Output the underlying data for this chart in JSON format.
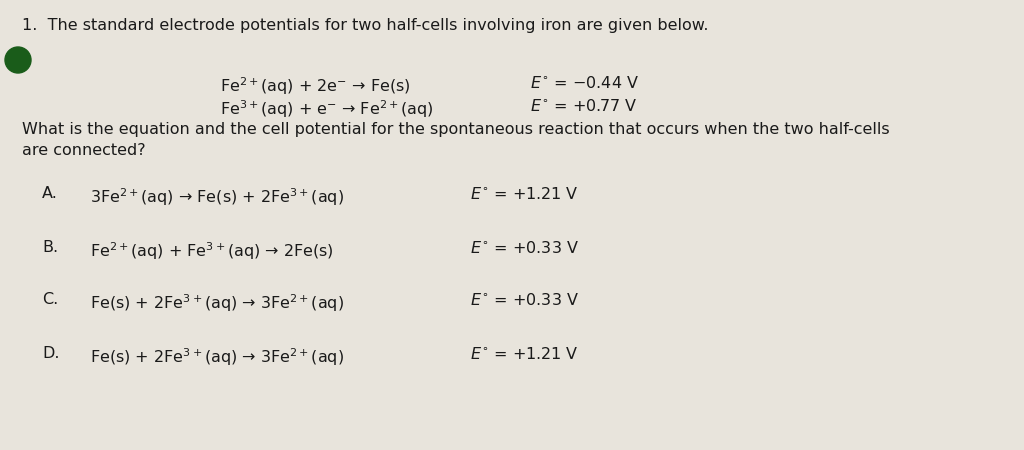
{
  "background_color": "#e8e4dc",
  "title_line": "1.  The standard electrode potentials for two half-cells involving iron are given below.",
  "half_cell_1_eq": "Fe$^{2+}$(aq) + 2e$^{-}$ → Fe(s)",
  "half_cell_1_pot": "$E^{\\circ}$ = −0.44 V",
  "half_cell_2_eq": "Fe$^{3+}$(aq) + e$^{-}$ → Fe$^{2+}$(aq)",
  "half_cell_2_pot": "$E^{\\circ}$ = +0.77 V",
  "question": "What is the equation and the cell potential for the spontaneous reaction that occurs when the two half-cells\nare connected?",
  "option_A_label": "A.",
  "option_A_eq": "3Fe$^{2+}$(aq) → Fe(s) + 2Fe$^{3+}$(aq)",
  "option_A_pot": "$E^{\\circ}$ = +1.21 V",
  "option_B_label": "B.",
  "option_B_eq": "Fe$^{2+}$(aq) + Fe$^{3+}$(aq) → 2Fe(s)",
  "option_B_pot": "$E^{\\circ}$ = +0.33 V",
  "option_C_label": "C.",
  "option_C_eq": "Fe(s) + 2Fe$^{3+}$(aq) → 3Fe$^{2+}$(aq)",
  "option_C_pot": "$E^{\\circ}$ = +0.33 V",
  "option_D_label": "D.",
  "option_D_eq": "Fe(s) + 2Fe$^{3+}$(aq) → 3Fe$^{2+}$(aq)",
  "option_D_pot": "$E^{\\circ}$ = +1.21 V",
  "circle_color": "#1a5c1a",
  "text_color": "#1a1a1a",
  "font_size": 11.5
}
